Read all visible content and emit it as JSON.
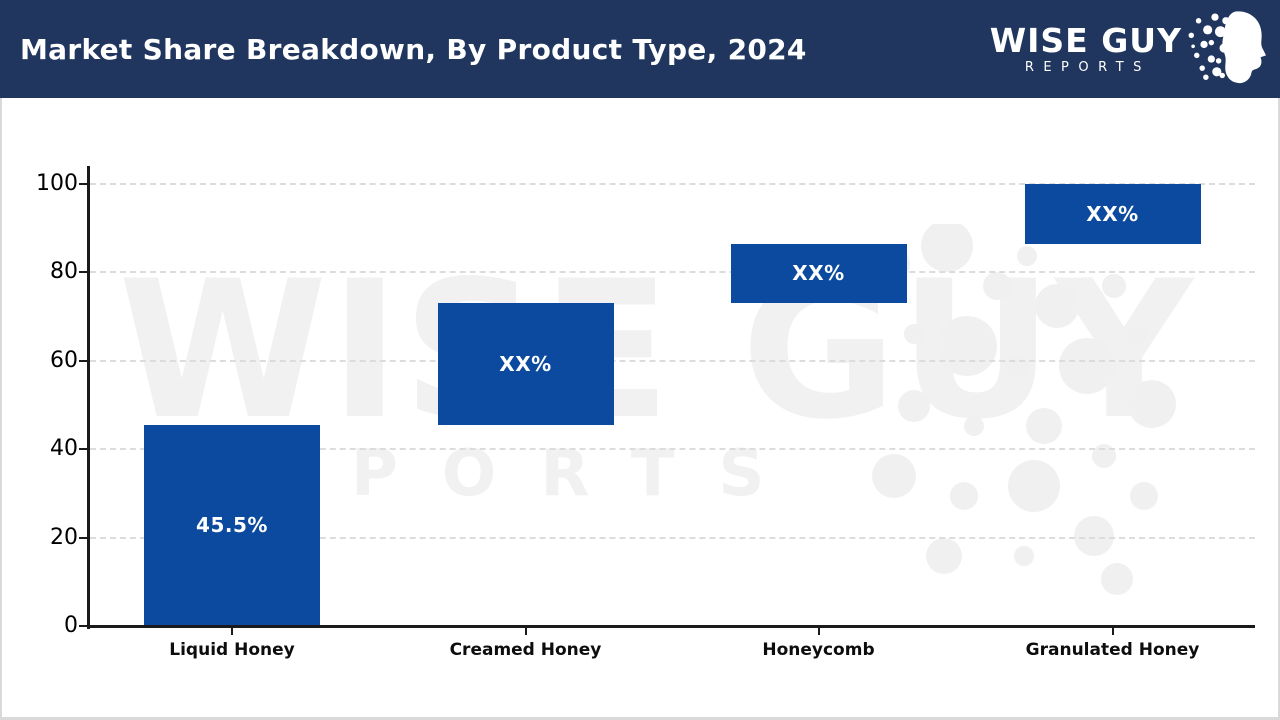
{
  "header": {
    "title": "Market Share Breakdown, By Product Type, 2024",
    "logo": {
      "line1": "WISE GUY",
      "line2": "REPORTS"
    },
    "bg_color": "#21365F"
  },
  "watermark": {
    "line1": "WISE GUY",
    "line2": "REPORTS"
  },
  "chart_data": {
    "type": "bar",
    "subtype": "floating-waterfall-bars",
    "title": "Market Share Breakdown, By Product Type, 2024",
    "categories": [
      "Liquid Honey",
      "Creamed Honey",
      "Honeycomb",
      "Granulated Honey"
    ],
    "segments": [
      {
        "category": "Liquid Honey",
        "start": 0,
        "end": 45.5,
        "label": "45.5%"
      },
      {
        "category": "Creamed Honey",
        "start": 45.5,
        "end": 73,
        "label": "XX%"
      },
      {
        "category": "Honeycomb",
        "start": 73,
        "end": 86.5,
        "label": "XX%"
      },
      {
        "category": "Granulated Honey",
        "start": 86.5,
        "end": 100,
        "label": "XX%"
      }
    ],
    "y_ticks": [
      0,
      20,
      40,
      60,
      80,
      100
    ],
    "ylim": [
      0,
      105
    ],
    "xlabel": "",
    "ylabel": "",
    "legend": "none",
    "grid": "horizontal-dashed",
    "bar_color": "#0B4A9F",
    "grid_color": "#dcdcdc",
    "axis_color": "#1a1a1a"
  }
}
